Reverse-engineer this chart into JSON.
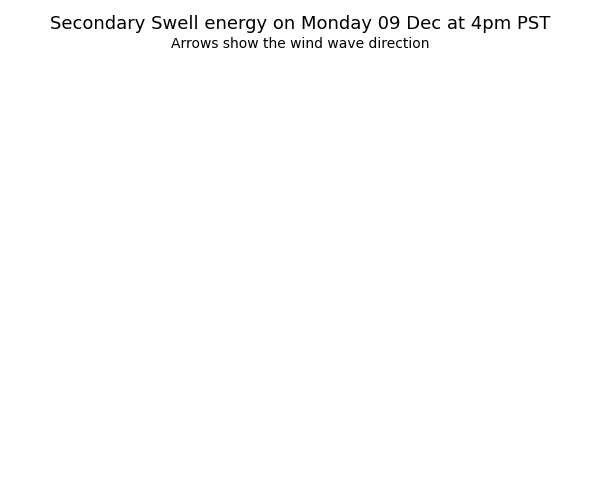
{
  "title": "Secondary Swell energy on Monday 09 Dec at 4pm PST",
  "subtitle": "Arrows show the wind wave direction",
  "title_fontsize": 13,
  "subtitle_fontsize": 10,
  "extent": [
    -130,
    -102,
    28,
    50
  ],
  "background_color": "#ffffff",
  "ocean_color": "#ffffff",
  "land_color_light": "#c8c8c8",
  "border_color": "#000000",
  "border_linewidth": 0.7,
  "coastline_linewidth": 0.7,
  "fig_width": 6.01,
  "fig_height": 4.89,
  "dpi": 100
}
